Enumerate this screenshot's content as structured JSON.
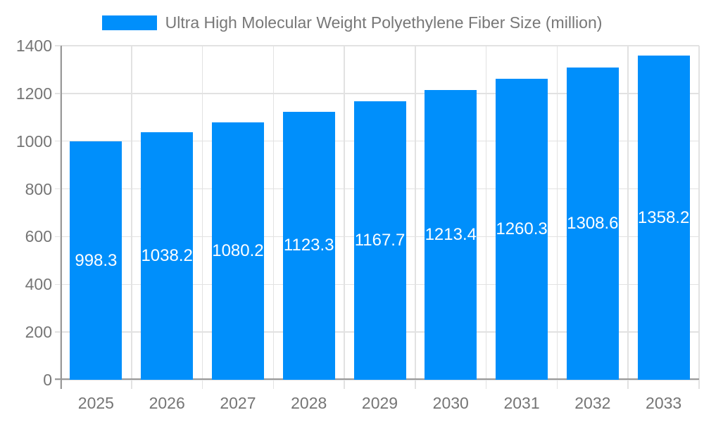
{
  "legend": {
    "label": "Ultra High Molecular Weight Polyethylene Fiber Size (million)",
    "swatch_icon": "legend-swatch-rectangle"
  },
  "colors": {
    "bar": "#008FFB",
    "grid": "#e2e2e2",
    "axis": "#999999",
    "tick_text": "#757575",
    "legend_text": "#777777",
    "data_label": "#ffffff",
    "background": "#ffffff"
  },
  "chart_data": {
    "type": "bar",
    "title": "Ultra High Molecular Weight Polyethylene Fiber Size (million)",
    "series": [
      {
        "name": "Ultra High Molecular Weight Polyethylene Fiber Size (million)",
        "values": [
          998.3,
          1038.2,
          1080.2,
          1123.3,
          1167.7,
          1213.4,
          1260.3,
          1308.6,
          1358.2
        ]
      }
    ],
    "categories": [
      "2025",
      "2026",
      "2027",
      "2028",
      "2029",
      "2030",
      "2031",
      "2032",
      "2033"
    ],
    "values": [
      998.3,
      1038.2,
      1080.2,
      1123.3,
      1167.7,
      1213.4,
      1260.3,
      1308.6,
      1358.2
    ],
    "data_labels": [
      "998.3",
      "1038.2",
      "1080.2",
      "1123.3",
      "1167.7",
      "1213.4",
      "1260.3",
      "1308.6",
      "1358.2"
    ],
    "xlabel": "",
    "ylabel": "",
    "ylim": [
      0,
      1400
    ],
    "ytick_step": 200,
    "ytick_labels": [
      "0",
      "200",
      "400",
      "600",
      "800",
      "1000",
      "1200",
      "1400"
    ],
    "grid": true,
    "legend_position": "top",
    "data_label_position": "inside-center"
  }
}
